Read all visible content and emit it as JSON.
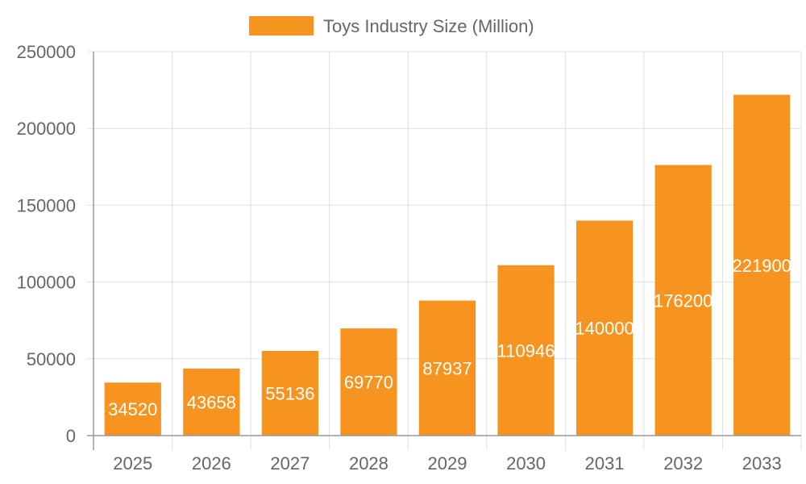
{
  "chart_data": {
    "type": "bar",
    "categories": [
      "2025",
      "2026",
      "2027",
      "2028",
      "2029",
      "2030",
      "2031",
      "2032",
      "2033"
    ],
    "series": [
      {
        "name": "Toys Industry Size (Million)",
        "values": [
          34520,
          43658,
          55136,
          69770,
          87937,
          110946,
          140000,
          176200,
          221900
        ],
        "color": "#f7941f"
      }
    ],
    "ylim": [
      0,
      250000
    ],
    "yticks": [
      "0",
      "50000",
      "100000",
      "150000",
      "200000",
      "250000"
    ],
    "grid": true,
    "legend_position": "top-center",
    "data_labels": true
  }
}
